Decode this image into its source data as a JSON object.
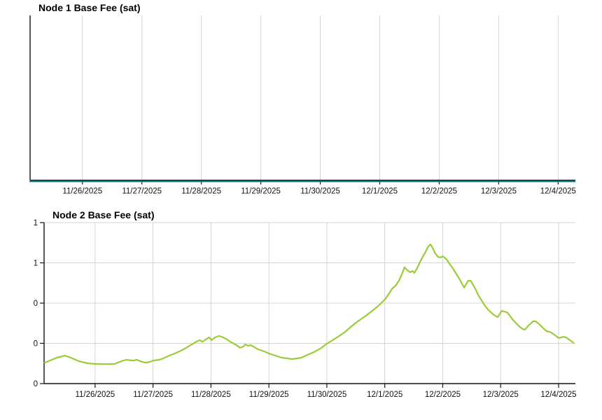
{
  "page": {
    "background": "#ffffff"
  },
  "chart_data": [
    {
      "id": "node1-base-fee",
      "type": "line",
      "title": "Node 1 Base Fee (sat)",
      "xlabel": "",
      "ylabel": "",
      "legend": "none",
      "x_tick_labels": [
        "11/26/2025",
        "11/27/2025",
        "11/28/2025",
        "11/29/2025",
        "11/30/2025",
        "12/1/2025",
        "12/2/2025",
        "12/3/2025",
        "12/4/2025"
      ],
      "x_tick_values": [
        0,
        1,
        2,
        3,
        4,
        5,
        6,
        7,
        8
      ],
      "x_domain": [
        -0.88,
        8.29
      ],
      "y_tick_labels": [],
      "y_tick_values": [],
      "y_domain": [
        0,
        1
      ],
      "grid": {
        "vertical": true,
        "horizontal": false
      },
      "series": [
        {
          "name": "Node 1 Base Fee",
          "color": "#0e7f87",
          "width": 2.2,
          "points": [
            [
              -0.88,
              0
            ],
            [
              8.28,
              0
            ]
          ]
        }
      ]
    },
    {
      "id": "node2-base-fee",
      "type": "line",
      "title": "Node 2 Base Fee (sat)",
      "xlabel": "",
      "ylabel": "",
      "legend": "none",
      "x_tick_labels": [
        "11/26/2025",
        "11/27/2025",
        "11/28/2025",
        "11/29/2025",
        "11/30/2025",
        "12/1/2025",
        "12/2/2025",
        "12/3/2025",
        "12/4/2025"
      ],
      "x_tick_values": [
        0,
        1,
        2,
        3,
        4,
        5,
        6,
        7,
        8
      ],
      "x_domain": [
        -0.88,
        8.29
      ],
      "y_tick_labels": [
        "0",
        "0",
        "0",
        "1",
        "1"
      ],
      "y_tick_values": [
        0,
        0.25,
        0.5,
        0.75,
        1.0
      ],
      "y_domain": [
        0,
        1
      ],
      "grid": {
        "vertical": true,
        "horizontal": true
      },
      "series": [
        {
          "name": "Node 2 Base Fee",
          "color": "#9acc3a",
          "width": 2.2,
          "points": [
            [
              -0.87,
              0.13
            ],
            [
              -0.78,
              0.143
            ],
            [
              -0.66,
              0.161
            ],
            [
              -0.52,
              0.174
            ],
            [
              -0.42,
              0.161
            ],
            [
              -0.28,
              0.139
            ],
            [
              -0.13,
              0.126
            ],
            [
              0,
              0.122
            ],
            [
              0.18,
              0.121
            ],
            [
              0.34,
              0.122
            ],
            [
              0.45,
              0.139
            ],
            [
              0.54,
              0.148
            ],
            [
              0.66,
              0.143
            ],
            [
              0.72,
              0.148
            ],
            [
              0.81,
              0.135
            ],
            [
              0.88,
              0.13
            ],
            [
              0.95,
              0.135
            ],
            [
              1.0,
              0.143
            ],
            [
              1.11,
              0.148
            ],
            [
              1.18,
              0.157
            ],
            [
              1.28,
              0.174
            ],
            [
              1.4,
              0.191
            ],
            [
              1.51,
              0.209
            ],
            [
              1.63,
              0.235
            ],
            [
              1.75,
              0.261
            ],
            [
              1.81,
              0.27
            ],
            [
              1.85,
              0.259
            ],
            [
              1.91,
              0.274
            ],
            [
              1.97,
              0.287
            ],
            [
              2.01,
              0.27
            ],
            [
              2.07,
              0.287
            ],
            [
              2.14,
              0.296
            ],
            [
              2.21,
              0.287
            ],
            [
              2.26,
              0.278
            ],
            [
              2.33,
              0.261
            ],
            [
              2.44,
              0.239
            ],
            [
              2.5,
              0.222
            ],
            [
              2.56,
              0.23
            ],
            [
              2.59,
              0.243
            ],
            [
              2.64,
              0.235
            ],
            [
              2.69,
              0.239
            ],
            [
              2.73,
              0.23
            ],
            [
              2.81,
              0.213
            ],
            [
              2.92,
              0.2
            ],
            [
              3.0,
              0.187
            ],
            [
              3.11,
              0.174
            ],
            [
              3.22,
              0.161
            ],
            [
              3.32,
              0.157
            ],
            [
              3.4,
              0.152
            ],
            [
              3.49,
              0.157
            ],
            [
              3.56,
              0.161
            ],
            [
              3.66,
              0.178
            ],
            [
              3.78,
              0.196
            ],
            [
              3.9,
              0.22
            ],
            [
              4.0,
              0.248
            ],
            [
              4.1,
              0.27
            ],
            [
              4.21,
              0.295
            ],
            [
              4.31,
              0.32
            ],
            [
              4.4,
              0.348
            ],
            [
              4.52,
              0.383
            ],
            [
              4.64,
              0.413
            ],
            [
              4.77,
              0.448
            ],
            [
              4.89,
              0.483
            ],
            [
              4.95,
              0.504
            ],
            [
              5.01,
              0.526
            ],
            [
              5.07,
              0.557
            ],
            [
              5.13,
              0.591
            ],
            [
              5.19,
              0.609
            ],
            [
              5.25,
              0.643
            ],
            [
              5.3,
              0.683
            ],
            [
              5.34,
              0.722
            ],
            [
              5.39,
              0.704
            ],
            [
              5.44,
              0.691
            ],
            [
              5.48,
              0.7
            ],
            [
              5.51,
              0.687
            ],
            [
              5.56,
              0.717
            ],
            [
              5.61,
              0.757
            ],
            [
              5.66,
              0.791
            ],
            [
              5.71,
              0.822
            ],
            [
              5.75,
              0.852
            ],
            [
              5.79,
              0.865
            ],
            [
              5.83,
              0.839
            ],
            [
              5.87,
              0.809
            ],
            [
              5.92,
              0.787
            ],
            [
              5.96,
              0.783
            ],
            [
              6.0,
              0.791
            ],
            [
              6.03,
              0.783
            ],
            [
              6.07,
              0.77
            ],
            [
              6.12,
              0.743
            ],
            [
              6.18,
              0.713
            ],
            [
              6.24,
              0.678
            ],
            [
              6.3,
              0.643
            ],
            [
              6.35,
              0.609
            ],
            [
              6.37,
              0.596
            ],
            [
              6.41,
              0.622
            ],
            [
              6.44,
              0.639
            ],
            [
              6.48,
              0.639
            ],
            [
              6.51,
              0.622
            ],
            [
              6.56,
              0.591
            ],
            [
              6.61,
              0.552
            ],
            [
              6.67,
              0.517
            ],
            [
              6.73,
              0.483
            ],
            [
              6.78,
              0.461
            ],
            [
              6.84,
              0.439
            ],
            [
              6.9,
              0.422
            ],
            [
              6.95,
              0.413
            ],
            [
              6.98,
              0.43
            ],
            [
              7.02,
              0.452
            ],
            [
              7.06,
              0.448
            ],
            [
              7.11,
              0.443
            ],
            [
              7.15,
              0.426
            ],
            [
              7.21,
              0.396
            ],
            [
              7.27,
              0.374
            ],
            [
              7.33,
              0.352
            ],
            [
              7.38,
              0.339
            ],
            [
              7.42,
              0.335
            ],
            [
              7.47,
              0.357
            ],
            [
              7.52,
              0.374
            ],
            [
              7.56,
              0.387
            ],
            [
              7.6,
              0.387
            ],
            [
              7.65,
              0.374
            ],
            [
              7.7,
              0.357
            ],
            [
              7.75,
              0.339
            ],
            [
              7.79,
              0.326
            ],
            [
              7.84,
              0.322
            ],
            [
              7.89,
              0.313
            ],
            [
              7.94,
              0.3
            ],
            [
              8.0,
              0.283
            ],
            [
              8.05,
              0.287
            ],
            [
              8.08,
              0.291
            ],
            [
              8.13,
              0.287
            ],
            [
              8.18,
              0.274
            ],
            [
              8.23,
              0.261
            ],
            [
              8.26,
              0.252
            ]
          ]
        }
      ]
    }
  ]
}
